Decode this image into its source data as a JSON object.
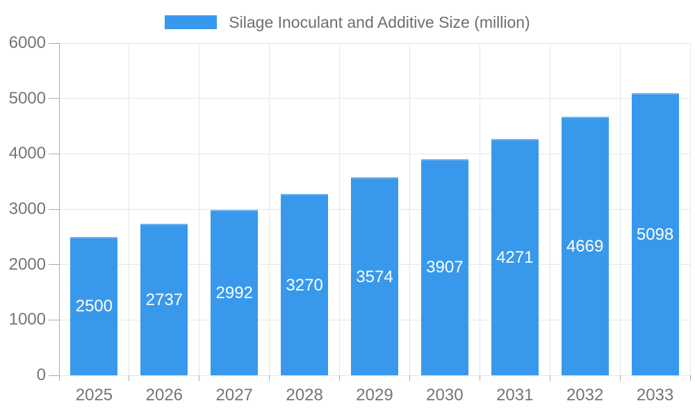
{
  "legend": {
    "label": "Silage Inoculant and Additive Size (million)"
  },
  "chart_data": {
    "type": "bar",
    "title": "Silage Inoculant and Additive Size (million)",
    "categories": [
      "2025",
      "2026",
      "2027",
      "2028",
      "2029",
      "2030",
      "2031",
      "2032",
      "2033"
    ],
    "values": [
      2500,
      2737,
      2992,
      3270,
      3574,
      3907,
      4271,
      4669,
      5098
    ],
    "value_labels": [
      "2500",
      "2737",
      "2992",
      "3270",
      "3574",
      "3907",
      "4271",
      "4669",
      "5098"
    ],
    "yticks": [
      "0",
      "1000",
      "2000",
      "3000",
      "4000",
      "5000",
      "6000"
    ],
    "ylim": [
      0,
      6000
    ],
    "xlabel": "",
    "ylabel": "",
    "grid": true,
    "legend_position": "top",
    "colors": {
      "bar": "#3899EC",
      "bar_top_edge": "#6fb3f1",
      "value_label": "#ffffff",
      "axis_text": "#757575",
      "legend_text": "#6e6e6e",
      "grid_line": "#e6e6e6",
      "axis_line": "#ababab"
    }
  }
}
